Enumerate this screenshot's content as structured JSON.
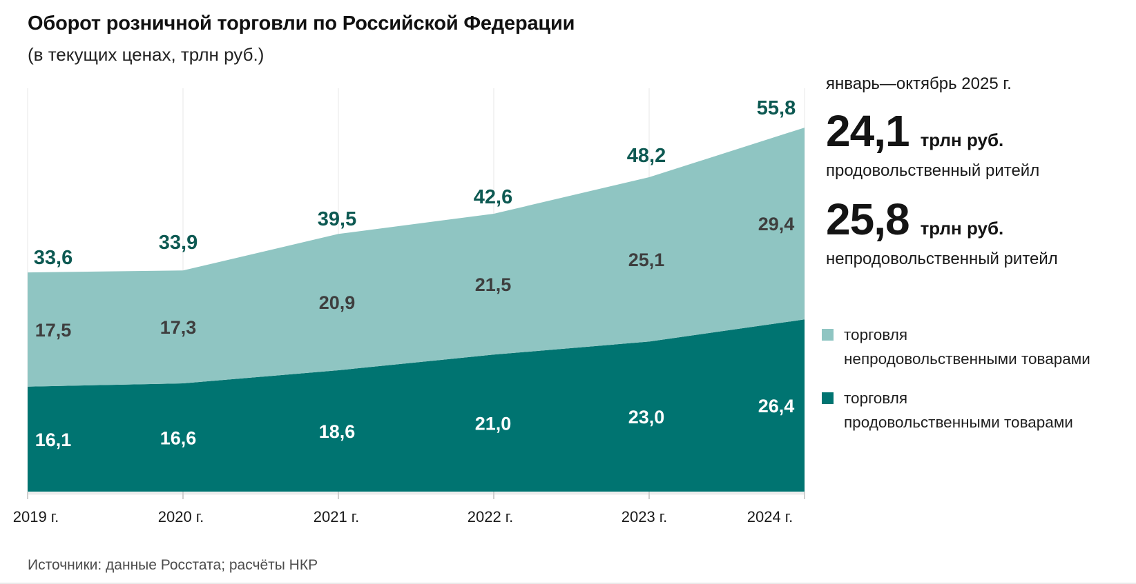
{
  "title": "Оборот розничной торговли по Российской Федерации",
  "subtitle": "(в текущих ценах, трлн руб.)",
  "source": "Источники: данные Росстата; расчёты НКР",
  "colors": {
    "nonfood_area": "#8FC5C2",
    "food_area": "#007471",
    "total_label": "#0D5952",
    "nonfood_label": "#3E3E3E",
    "food_label": "#FFFFFF",
    "grid": "#EFEFEF",
    "axis_strip": "#ECECEC",
    "tick": "#CFCFCF",
    "year_label": "#1A1A1A"
  },
  "stats_panel": {
    "period": "январь—октябрь 2025 г.",
    "items": [
      {
        "value": "24,1",
        "unit": "трлн руб.",
        "label": "продовольственный ритейл"
      },
      {
        "value": "25,8",
        "unit": "трлн руб.",
        "label": "непродовольственный ритейл"
      }
    ]
  },
  "legend": [
    {
      "swatch": "#8FC5C2",
      "lines": [
        "торговля",
        "непродовольственными товарами"
      ]
    },
    {
      "swatch": "#007471",
      "lines": [
        "торговля",
        "продовольственными товарами"
      ]
    }
  ],
  "chart_data": {
    "type": "area",
    "stacked": true,
    "title": "Оборот розничной торговли по Российской Федерации (в текущих ценах, трлн руб.)",
    "categories": [
      "2019 г.",
      "2020 г.",
      "2021 г.",
      "2022 г.",
      "2023 г.",
      "2024 г."
    ],
    "series": [
      {
        "name": "торговля продовольственными товарами",
        "color": "#007471",
        "values": [
          16.1,
          16.6,
          18.6,
          21.0,
          23.0,
          26.4
        ]
      },
      {
        "name": "торговля непродовольственными товарами",
        "color": "#8FC5C2",
        "values": [
          17.5,
          17.3,
          20.9,
          21.5,
          25.1,
          29.4
        ]
      }
    ],
    "totals": [
      33.6,
      33.9,
      39.5,
      42.6,
      48.2,
      55.8
    ],
    "xlabel": "",
    "ylabel": "трлн руб.",
    "ylim": [
      0,
      62
    ],
    "grid": "faint vertical gridlines at each year",
    "legend_position": "right",
    "decimal_separator": ","
  }
}
